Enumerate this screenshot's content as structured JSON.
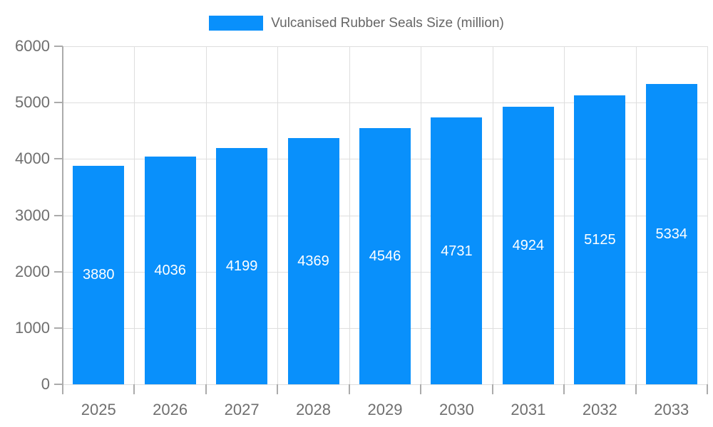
{
  "legend": {
    "label": "Vulcanised Rubber Seals Size (million)"
  },
  "chart_data": {
    "type": "bar",
    "title": "",
    "xlabel": "",
    "ylabel": "",
    "categories": [
      "2025",
      "2026",
      "2027",
      "2028",
      "2029",
      "2030",
      "2031",
      "2032",
      "2033"
    ],
    "series": [
      {
        "name": "Vulcanised Rubber Seals Size (million)",
        "values": [
          3880,
          4036,
          4199,
          4369,
          4546,
          4731,
          4924,
          5125,
          5334
        ]
      }
    ],
    "value_labels_shown": true,
    "ylim": [
      0,
      6000
    ],
    "y_ticks": [
      0,
      1000,
      2000,
      3000,
      4000,
      5000,
      6000
    ],
    "grid": true,
    "legend_position": "top",
    "colors": {
      "bar": "#0990fb",
      "value_label": "#ffffff",
      "axis_label": "#6f6f6f",
      "legend_text": "#666666",
      "gridline": "#dedede",
      "axis_line": "#ababab",
      "background": "#ffffff"
    }
  }
}
